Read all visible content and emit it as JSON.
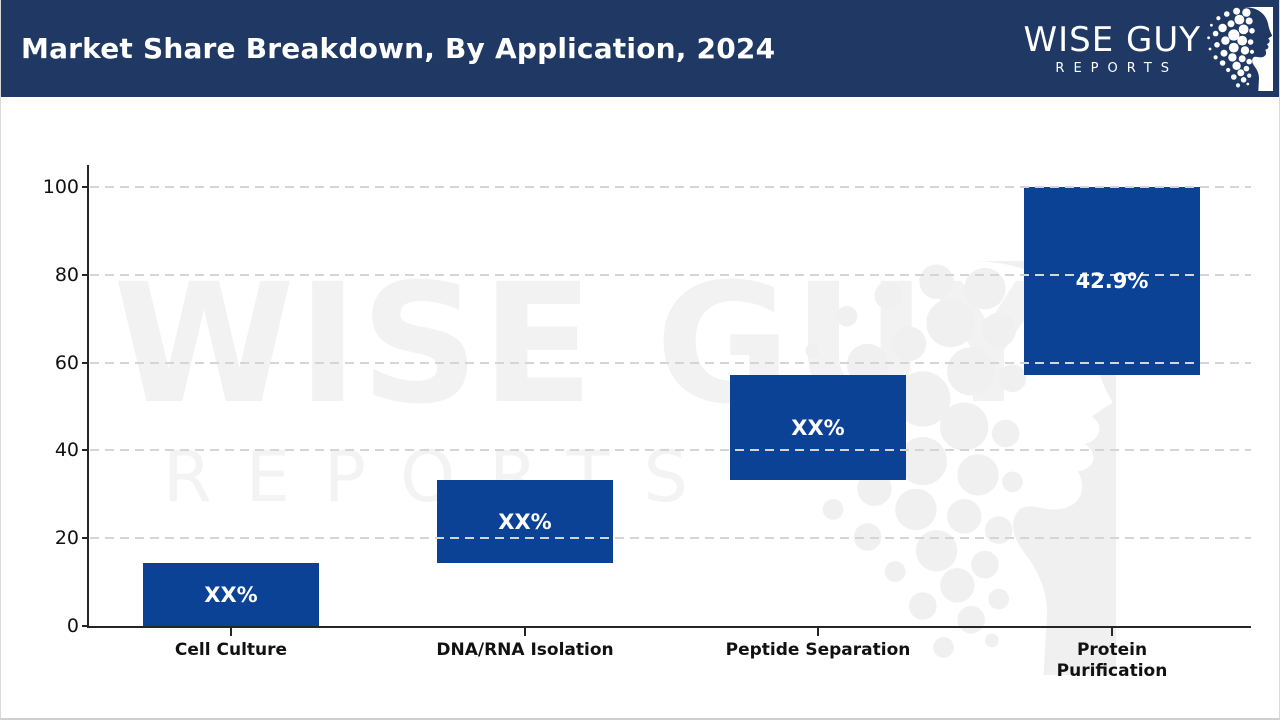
{
  "header": {
    "title": "Market Share Breakdown, By Application, 2024",
    "logo": {
      "line1": "WISE GUY",
      "line2": "REPORTS"
    }
  },
  "watermark": {
    "line1": "WISE GUY",
    "line2": "REPORTS"
  },
  "colors": {
    "header_bg": "#1f3864",
    "bar": "#0b4296",
    "bar_label": "#ffffff",
    "grid": "#d5d5d5",
    "axis": "#262626",
    "watermark": "#f2f2f2"
  },
  "chart_data": {
    "type": "bar",
    "subtype": "floating-waterfall",
    "title": "Market Share Breakdown, By Application, 2024",
    "categories": [
      "Cell Culture",
      "DNA/RNA Isolation",
      "Peptide Separation",
      "Protein\nPurification"
    ],
    "yticks": [
      0,
      20,
      40,
      60,
      80,
      100
    ],
    "ylim": [
      0,
      105
    ],
    "xlabel": "",
    "ylabel": "",
    "grid": "dashed-horizontal-over-bars",
    "legend": "none",
    "segments": [
      {
        "category": "Cell Culture",
        "label": "XX%",
        "start": 0,
        "end": 14.3
      },
      {
        "category": "DNA/RNA Isolation",
        "label": "XX%",
        "start": 14.3,
        "end": 33.3
      },
      {
        "category": "Peptide Separation",
        "label": "XX%",
        "start": 33.3,
        "end": 57.1
      },
      {
        "category": "Protein Purification",
        "label": "42.9%",
        "start": 57.1,
        "end": 100
      }
    ]
  }
}
